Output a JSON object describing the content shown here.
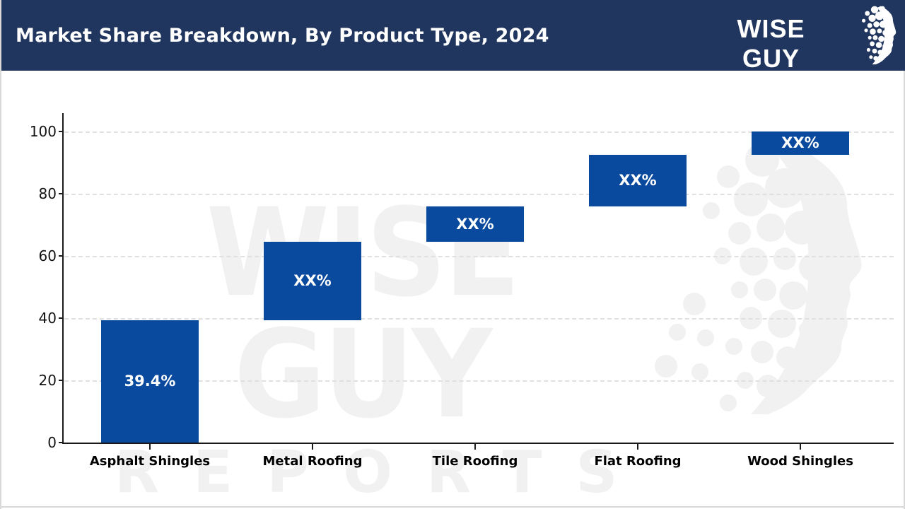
{
  "header": {
    "title": "Market Share Breakdown, By Product Type, 2024",
    "logo": {
      "line1": "WISE GUY",
      "line2": "REPORTS"
    }
  },
  "watermark": {
    "line1": "WISE GUY",
    "line2": "REPORTS"
  },
  "chart_data": {
    "type": "bar",
    "subtype": "waterfall-floating-bars",
    "title": "Market Share Breakdown, By Product Type, 2024",
    "xlabel": "",
    "ylabel": "",
    "categories": [
      "Asphalt Shingles",
      "Metal Roofing",
      "Tile Roofing",
      "Flat Roofing",
      "Wood Shingles"
    ],
    "values": [
      39.4,
      25.1,
      11.5,
      16.6,
      7.4
    ],
    "segments": [
      {
        "category": "Asphalt Shingles",
        "start": 0,
        "end": 39.4,
        "label": "39.4%"
      },
      {
        "category": "Metal Roofing",
        "start": 39.4,
        "end": 64.5,
        "label": "XX%"
      },
      {
        "category": "Tile Roofing",
        "start": 64.5,
        "end": 76.0,
        "label": "XX%"
      },
      {
        "category": "Flat Roofing",
        "start": 76.0,
        "end": 92.6,
        "label": "XX%"
      },
      {
        "category": "Wood Shingles",
        "start": 92.6,
        "end": 100.0,
        "label": "XX%"
      }
    ],
    "y_ticks": [
      0,
      20,
      40,
      60,
      80,
      100
    ],
    "ylim": [
      0,
      106
    ],
    "grid": "horizontal-dashed",
    "legend": "none",
    "bar_color": "#0a4a9e",
    "bar_label_color": "#ffffff"
  },
  "colors": {
    "header_bg": "#20365f",
    "bar": "#0a4a9e",
    "axis": "#1a1a1a",
    "gridline": "#e0e0e0",
    "watermark": "#f1f1f1",
    "title_text": "#ffffff"
  }
}
